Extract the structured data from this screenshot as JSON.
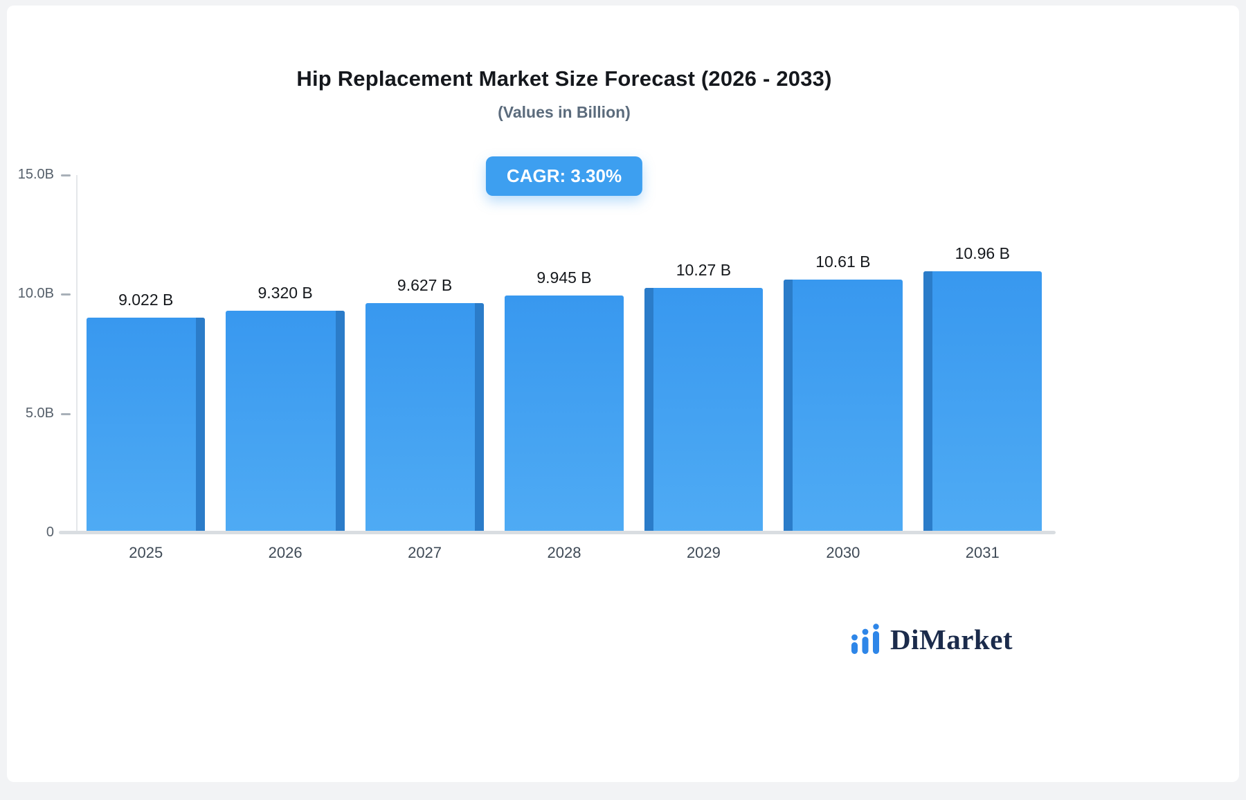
{
  "header": {
    "title": "Hip Replacement Market Size Forecast (2026 - 2033)",
    "subtitle": "(Values in Billion)"
  },
  "badge": {
    "label": "CAGR: 3.30%",
    "background": "#3d9ff0",
    "text_color": "#ffffff"
  },
  "chart_data": {
    "type": "bar",
    "title": "Hip Replacement Market Size Forecast (2026 - 2033)",
    "subtitle": "(Values in Billion)",
    "annotation": "CAGR: 3.30%",
    "categories": [
      "2025",
      "2026",
      "2027",
      "2028",
      "2029",
      "2030",
      "2031"
    ],
    "values": [
      9.022,
      9.32,
      9.627,
      9.945,
      10.27,
      10.61,
      10.96
    ],
    "value_labels": [
      "9.022 B",
      "9.320 B",
      "9.627 B",
      "9.945 B",
      "10.27 B",
      "10.61 B",
      "10.96 B"
    ],
    "xlabel": "",
    "ylabel": "",
    "ylim": [
      0,
      15
    ],
    "yticks": [
      {
        "label": "15.0B",
        "value": 15
      },
      {
        "label": "10.0B",
        "value": 10
      },
      {
        "label": "5.0B",
        "value": 5
      },
      {
        "label": "0",
        "value": 0
      }
    ],
    "grid": false,
    "legend": false,
    "bar_color_top": "#3898ef",
    "bar_color_bottom": "#4fabf4",
    "bar_shade_color": "#2b7cc9"
  },
  "logo": {
    "text": "DiMarket",
    "icon": "bar-chart-logo-icon",
    "icon_color": "#2e86e8",
    "text_color": "#1b2b4b"
  }
}
